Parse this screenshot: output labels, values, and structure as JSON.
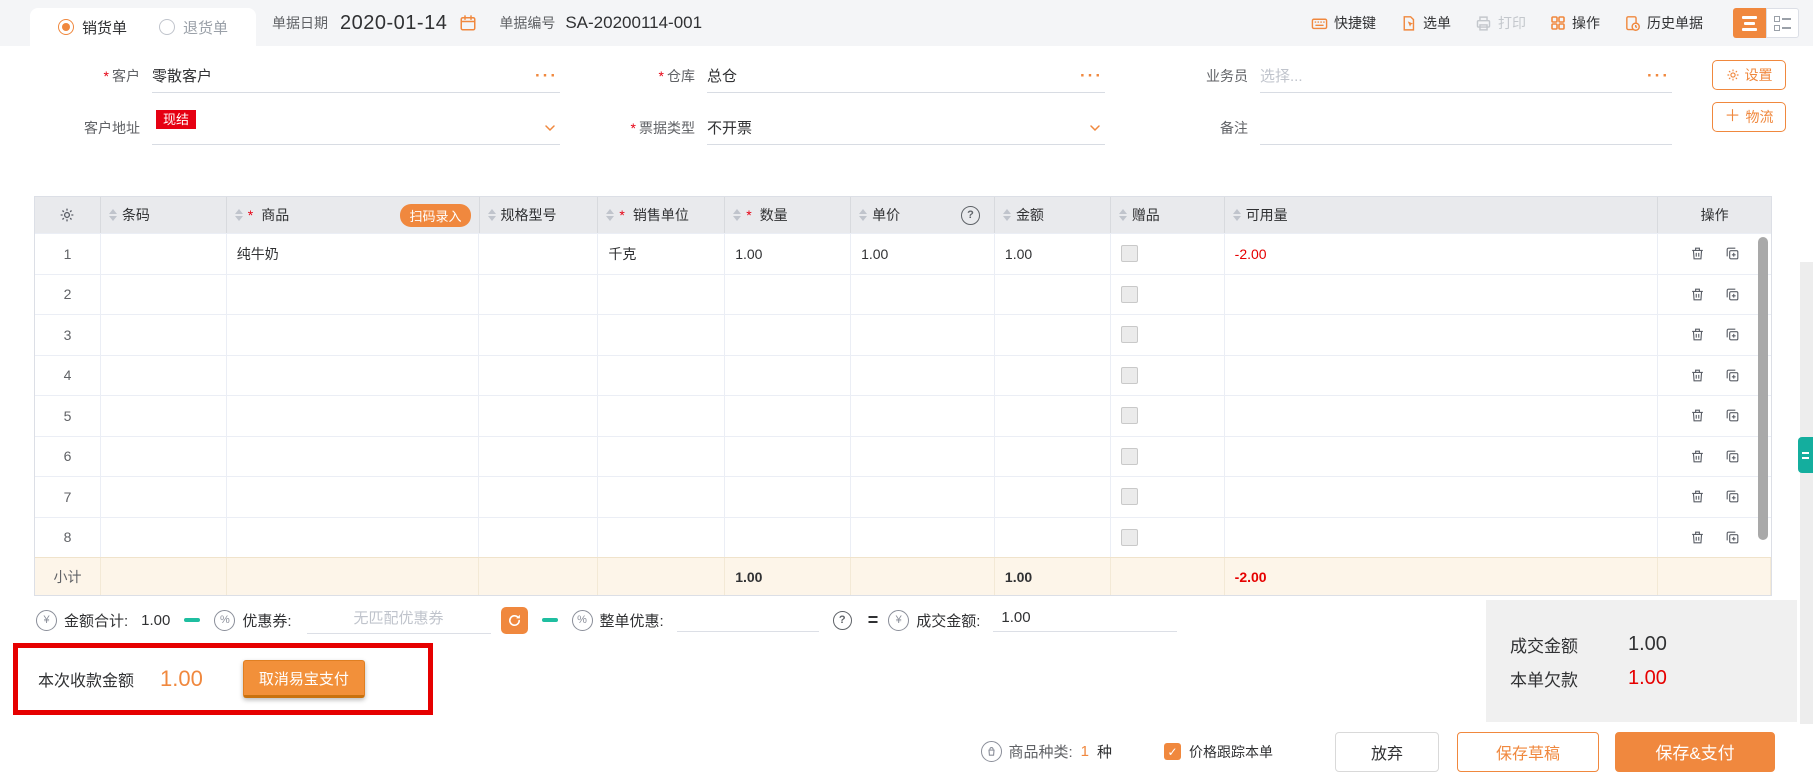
{
  "topbar": {
    "tabs": [
      {
        "label": "销货单",
        "selected": true
      },
      {
        "label": "退货单",
        "selected": false
      }
    ],
    "date_label": "单据日期",
    "date_value": "2020-01-14",
    "number_label": "单据编号",
    "number_value": "SA-20200114-001",
    "actions": [
      {
        "label": "快捷键"
      },
      {
        "label": "选单"
      },
      {
        "label": "打印"
      },
      {
        "label": "操作"
      },
      {
        "label": "历史单据"
      }
    ]
  },
  "form": {
    "customer": {
      "label": "客户",
      "value": "零散客户",
      "badge": "现结"
    },
    "customer_address": {
      "label": "客户地址",
      "value": ""
    },
    "warehouse": {
      "label": "仓库",
      "value": "总仓"
    },
    "ticket_type": {
      "label": "票据类型",
      "value": "不开票"
    },
    "salesman": {
      "label": "业务员",
      "placeholder": "选择..."
    },
    "remark": {
      "label": "备注",
      "value": ""
    },
    "settings_button": "设置",
    "logistics_button": "物流"
  },
  "table": {
    "columns": [
      {
        "key": "index",
        "label": ""
      },
      {
        "key": "barcode",
        "label": "条码",
        "sortable": true
      },
      {
        "key": "product",
        "label": "商品",
        "required": true,
        "sortable": true,
        "badge": "扫码录入"
      },
      {
        "key": "spec",
        "label": "规格型号",
        "sortable": true
      },
      {
        "key": "unit",
        "label": "销售单位",
        "required": true,
        "sortable": true
      },
      {
        "key": "qty",
        "label": "数量",
        "required": true,
        "sortable": true
      },
      {
        "key": "price",
        "label": "单价",
        "sortable": true,
        "help": true
      },
      {
        "key": "amount",
        "label": "金额",
        "sortable": true
      },
      {
        "key": "gift",
        "label": "赠品",
        "sortable": true
      },
      {
        "key": "available",
        "label": "可用量",
        "sortable": true
      },
      {
        "key": "ops",
        "label": "操作"
      }
    ],
    "rows": [
      {
        "index": "1",
        "barcode": "",
        "product": "纯牛奶",
        "spec": "",
        "unit": "千克",
        "qty": "1.00",
        "price": "1.00",
        "amount": "1.00",
        "available": "-2.00"
      },
      {
        "index": "2",
        "barcode": "",
        "product": "",
        "spec": "",
        "unit": "",
        "qty": "",
        "price": "",
        "amount": "",
        "available": ""
      },
      {
        "index": "3",
        "barcode": "",
        "product": "",
        "spec": "",
        "unit": "",
        "qty": "",
        "price": "",
        "amount": "",
        "available": ""
      },
      {
        "index": "4",
        "barcode": "",
        "product": "",
        "spec": "",
        "unit": "",
        "qty": "",
        "price": "",
        "amount": "",
        "available": ""
      },
      {
        "index": "5",
        "barcode": "",
        "product": "",
        "spec": "",
        "unit": "",
        "qty": "",
        "price": "",
        "amount": "",
        "available": ""
      },
      {
        "index": "6",
        "barcode": "",
        "product": "",
        "spec": "",
        "unit": "",
        "qty": "",
        "price": "",
        "amount": "",
        "available": ""
      },
      {
        "index": "7",
        "barcode": "",
        "product": "",
        "spec": "",
        "unit": "",
        "qty": "",
        "price": "",
        "amount": "",
        "available": ""
      },
      {
        "index": "8",
        "barcode": "",
        "product": "",
        "spec": "",
        "unit": "",
        "qty": "",
        "price": "",
        "amount": "",
        "available": ""
      }
    ],
    "subtotal": {
      "label": "小计",
      "qty": "1.00",
      "amount": "1.00",
      "available": "-2.00"
    }
  },
  "summary": {
    "total_label": "金额合计:",
    "total_value": "1.00",
    "coupon_label": "优惠券:",
    "coupon_value": "无匹配优惠券",
    "discount_label": "整单优惠:",
    "deal_label": "成交金额:",
    "deal_value": "1.00"
  },
  "payment": {
    "label": "本次收款金额",
    "value": "1.00",
    "cancel_button": "取消易宝支付"
  },
  "totals_panel": {
    "deal_label": "成交金额",
    "deal_value": "1.00",
    "debt_label": "本单欠款",
    "debt_value": "1.00"
  },
  "footer": {
    "category_label": "商品种类:",
    "category_value": "1",
    "category_unit": "种",
    "price_track_label": "价格跟踪本单",
    "price_track_checked": true,
    "abandon_button": "放弃",
    "draft_button": "保存草稿",
    "save_pay_button": "保存&支付"
  },
  "colors": {
    "accent": "#F0883E",
    "danger": "#E60012",
    "teal": "#14AE9E"
  }
}
